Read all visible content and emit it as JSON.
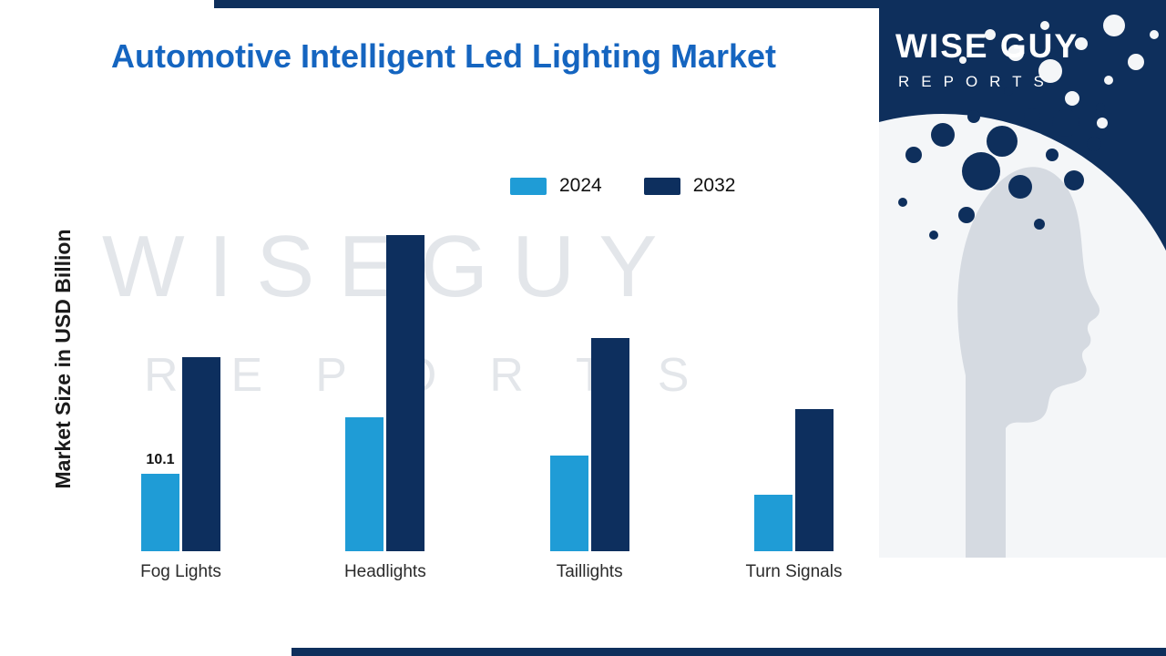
{
  "title": "Automotive Intelligent Led Lighting Market",
  "brand": {
    "name": "WISE GUY",
    "sub": "REPORTS"
  },
  "watermark": {
    "line1": "WISEGUY",
    "line2": "REPORTS"
  },
  "colors": {
    "series_2024": "#1f9cd6",
    "series_2032": "#0d2f5e",
    "title_blue": "#1565c0",
    "panel_navy": "#0e2f5c",
    "watermark_gray": "#e3e6ea"
  },
  "chart_data": {
    "type": "bar",
    "title": "Automotive Intelligent Led Lighting Market",
    "ylabel": "Market Size in USD Billion",
    "xlabel": "",
    "ylim": [
      0,
      43
    ],
    "grid": false,
    "legend_position": "top-center",
    "categories": [
      "Fog Lights",
      "Headlights",
      "Taillights",
      "Turn Signals"
    ],
    "series": [
      {
        "name": "2024",
        "color": "#1f9cd6",
        "values": [
          10.1,
          17.6,
          12.6,
          7.4
        ]
      },
      {
        "name": "2032",
        "color": "#0d2f5e",
        "values": [
          25.4,
          41.5,
          28.0,
          18.6
        ]
      }
    ],
    "annotations": [
      {
        "series": "2024",
        "category": "Fog Lights",
        "text": "10.1"
      }
    ]
  }
}
